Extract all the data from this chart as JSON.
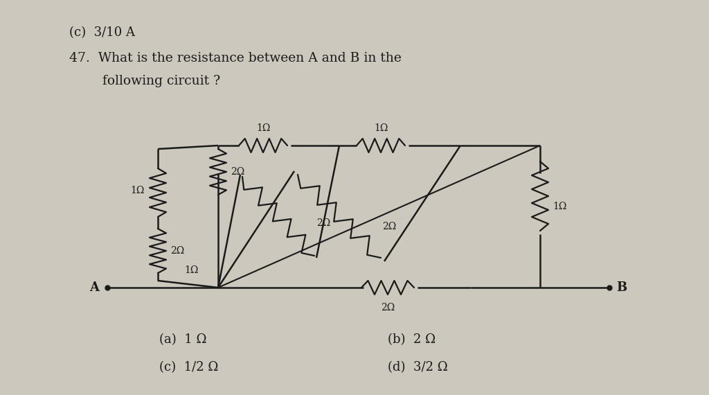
{
  "bg_color": "#cdc8be",
  "text_color": "#1a1a1a",
  "title_line1": "47.  What is the resistance between A and B in the",
  "title_line2": "        following circuit ?",
  "top_partial": "(c)  3/10 A",
  "options": [
    "(a)  1 Ω",
    "(b)  2 Ω",
    "(c)  1/2 Ω",
    "(d)  3/2 Ω"
  ]
}
